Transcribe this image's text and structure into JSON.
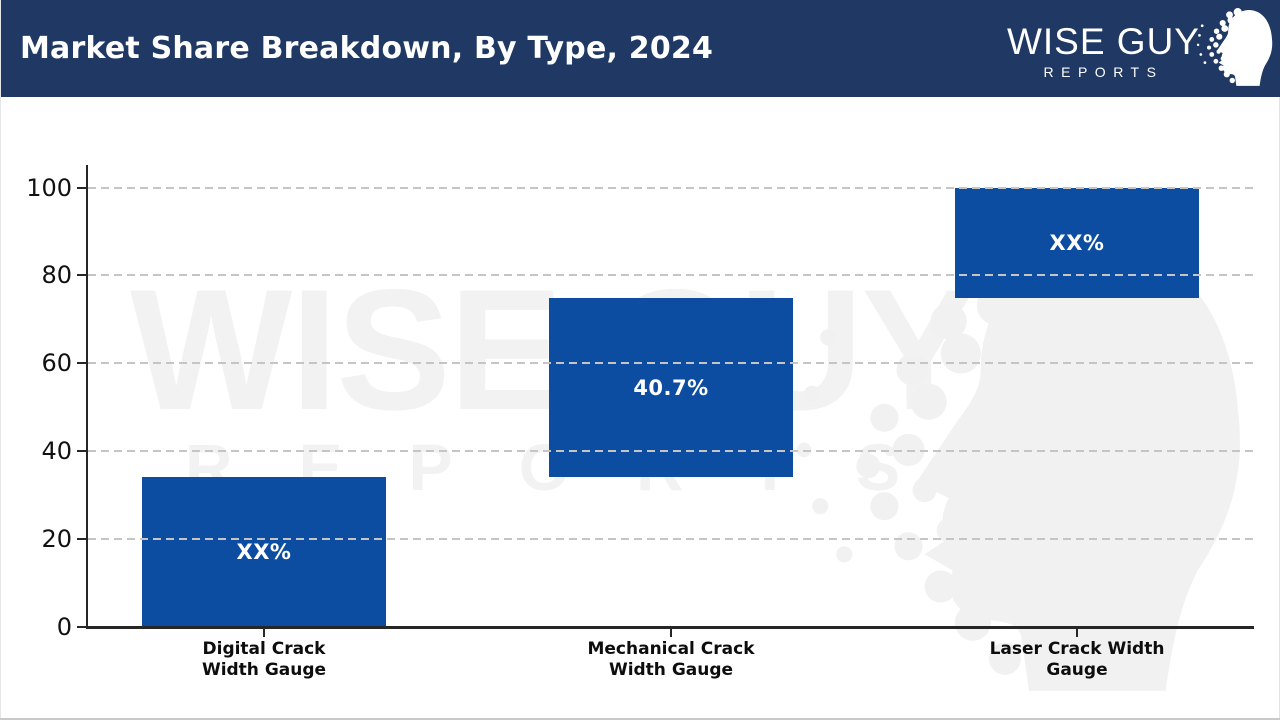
{
  "header": {
    "title": "Market Share Breakdown, By Type, 2024",
    "logo": {
      "name": "WISE GUY",
      "sub": "REPORTS"
    }
  },
  "watermark": {
    "name": "WISE GUY",
    "sub": "REPORTS"
  },
  "chart_data": {
    "type": "bar",
    "subtype": "floating-segment-waterfall",
    "title": "Market Share Breakdown, By Type, 2024",
    "categories": [
      "Digital Crack Width Gauge",
      "Mechanical Crack Width Gauge",
      "Laser Crack Width Gauge"
    ],
    "category_lines": [
      [
        "Digital Crack",
        "Width Gauge"
      ],
      [
        "Mechanical Crack",
        "Width Gauge"
      ],
      [
        "Laser Crack Width",
        "Gauge"
      ]
    ],
    "segments": [
      {
        "category": "Digital Crack Width Gauge",
        "from": 0,
        "to": 34.1,
        "label": "XX%"
      },
      {
        "category": "Mechanical Crack Width Gauge",
        "from": 34.1,
        "to": 74.8,
        "label": "40.7%"
      },
      {
        "category": "Laser Crack Width Gauge",
        "from": 74.8,
        "to": 100,
        "label": "XX%"
      }
    ],
    "yticks": [
      0,
      20,
      40,
      60,
      80,
      100
    ],
    "ylim": [
      0,
      105
    ],
    "xlabel": "",
    "ylabel": "",
    "units": "%",
    "legend": "none",
    "grid": "horizontal-dashed",
    "bar_color": "#0d4da1"
  },
  "colors": {
    "header_bg": "#1f3864",
    "bar": "#0d4da1",
    "grid": "#c5c5c5",
    "axis": "#262626",
    "watermark": "#f2f2f2"
  }
}
